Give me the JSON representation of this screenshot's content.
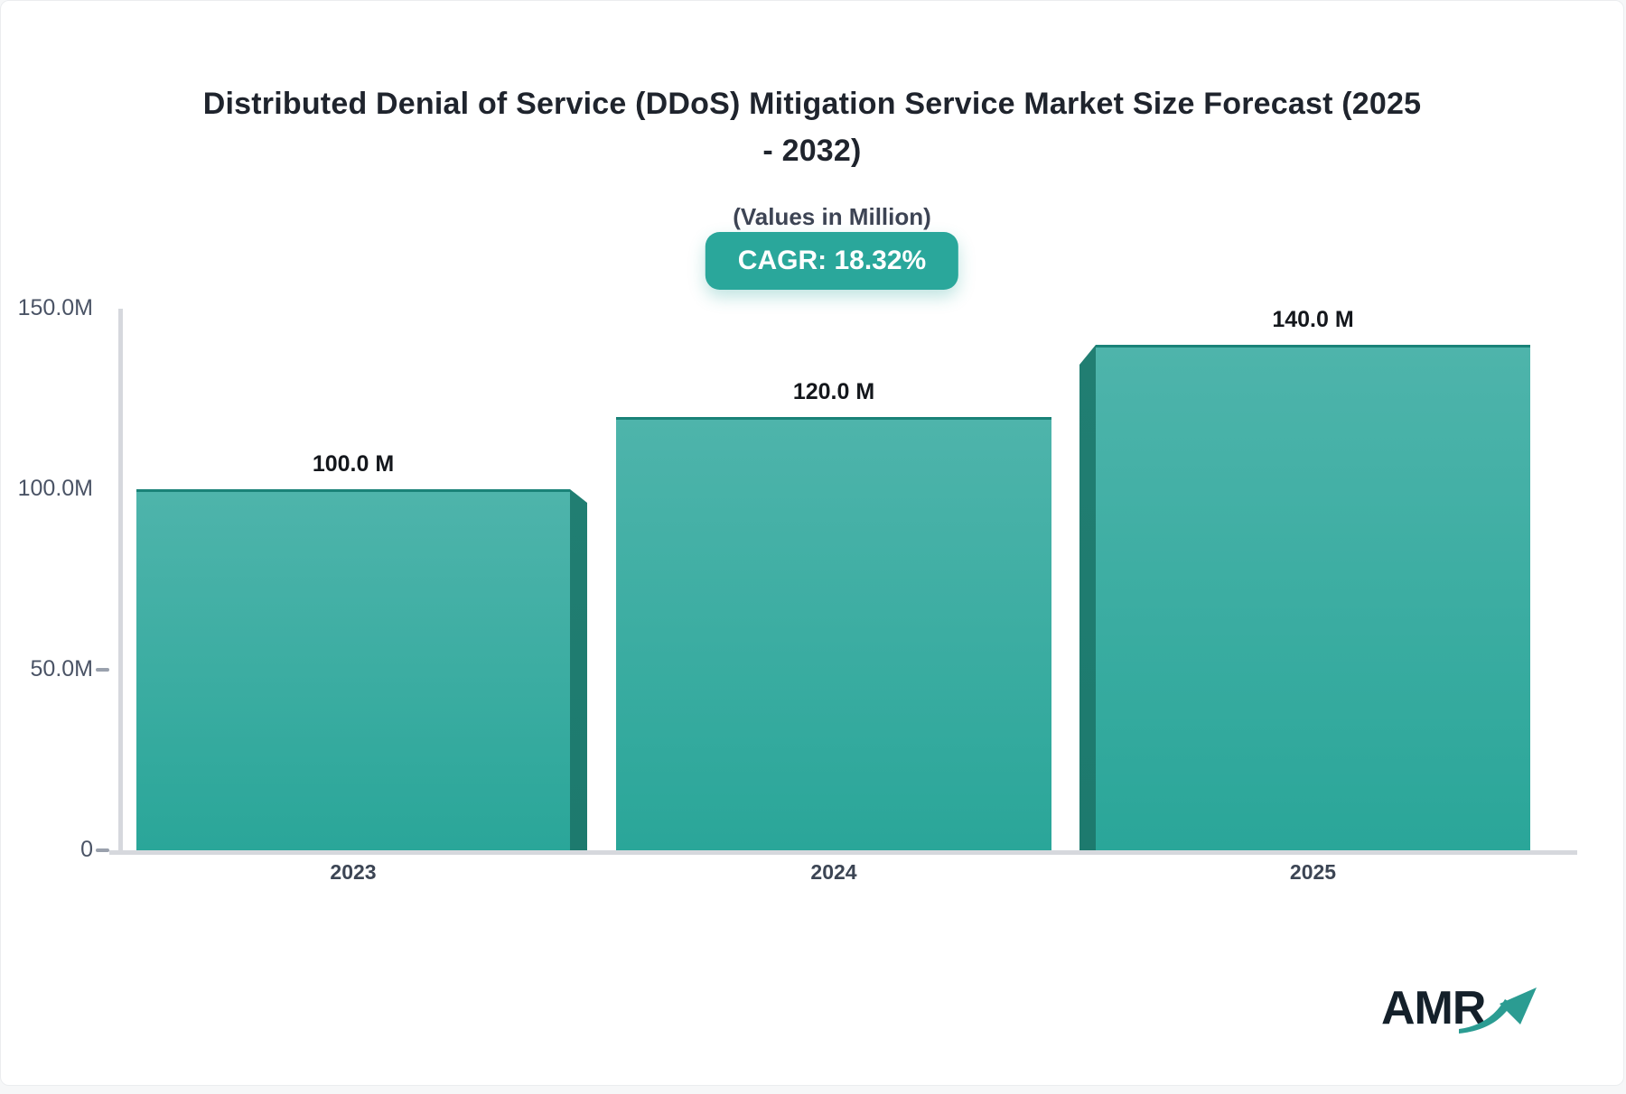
{
  "header": {
    "title_line1": "Distributed Denial of Service (DDoS) Mitigation Service Market Size Forecast (2025",
    "title_line2": "- 2032)",
    "subtitle": "(Values in Million)",
    "cagr_label": "CAGR: 18.32%"
  },
  "chart_data": {
    "type": "bar",
    "title": "Distributed Denial of Service (DDoS) Mitigation Service Market Size Forecast (2025 - 2032)",
    "subtitle": "(Values in Million)",
    "cagr_percent": 18.32,
    "unit": "Million",
    "categories": [
      "2023",
      "2024",
      "2025"
    ],
    "values": [
      100.0,
      120.0,
      140.0
    ],
    "value_labels": [
      "100.0 M",
      "120.0 M",
      "140.0 M"
    ],
    "ylim": [
      0,
      150
    ],
    "grid": false,
    "legend": false,
    "y_axis": [
      {
        "label": "150.0M",
        "value": 150,
        "dash": false
      },
      {
        "label": "100.0M",
        "value": 100,
        "dash": false
      },
      {
        "label": "50.0M",
        "value": 50,
        "dash": true
      },
      {
        "label": "0",
        "value": 0,
        "dash": true
      }
    ]
  },
  "logo": {
    "text": "AMR"
  },
  "colors": {
    "bar_gradient_top": "#4eb4ab",
    "bar_gradient_bottom": "#2aa699",
    "bar_side": "#1e7b6e",
    "bar_side_dark": "#1d7a6e",
    "bar_top_line": "#1a8278",
    "badge_bg": "#2aa79b",
    "axis_line": "#d6d8dd",
    "tick": "#9aa1ad",
    "title_text": "#1f242d",
    "logo_text": "#14202a",
    "logo_arrow": "#2b9c92"
  }
}
